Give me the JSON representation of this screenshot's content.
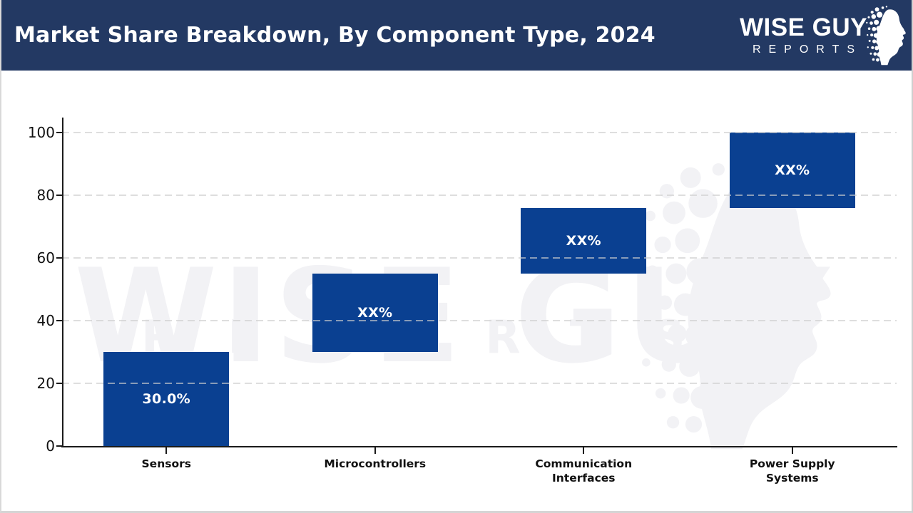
{
  "header": {
    "title": "Market Share Breakdown, By Component Type, 2024",
    "bg_color": "#233963",
    "logo": {
      "line1": "WISE GUY",
      "line2": "REPORTS"
    }
  },
  "watermark": {
    "line1": "WISE GUY",
    "line2": "REPORTS"
  },
  "chart_data": {
    "type": "bar",
    "subtype": "waterfall",
    "title": "Market Share Breakdown, By Component Type, 2024",
    "xlabel": "",
    "ylabel": "",
    "ylim": [
      0,
      100
    ],
    "yticks": [
      0,
      20,
      40,
      60,
      80,
      100
    ],
    "grid": "horizontal-dashed",
    "legend": "none",
    "bar_color": "#0a4091",
    "bar_label_color": "#ffffff",
    "categories": [
      "Sensors",
      "Microcontrollers",
      "Communication Interfaces",
      "Power Supply Systems"
    ],
    "bars": [
      {
        "category_lines": [
          "Sensors"
        ],
        "start": 0,
        "end": 30,
        "value": 30,
        "label": "30.0%"
      },
      {
        "category_lines": [
          "Microcontrollers"
        ],
        "start": 30,
        "end": 55,
        "value": 25,
        "label": "XX%"
      },
      {
        "category_lines": [
          "Communication",
          "Interfaces"
        ],
        "start": 55,
        "end": 76,
        "value": 21,
        "label": "XX%"
      },
      {
        "category_lines": [
          "Power Supply",
          "Systems"
        ],
        "start": 76,
        "end": 100,
        "value": 24,
        "label": "XX%"
      }
    ]
  }
}
